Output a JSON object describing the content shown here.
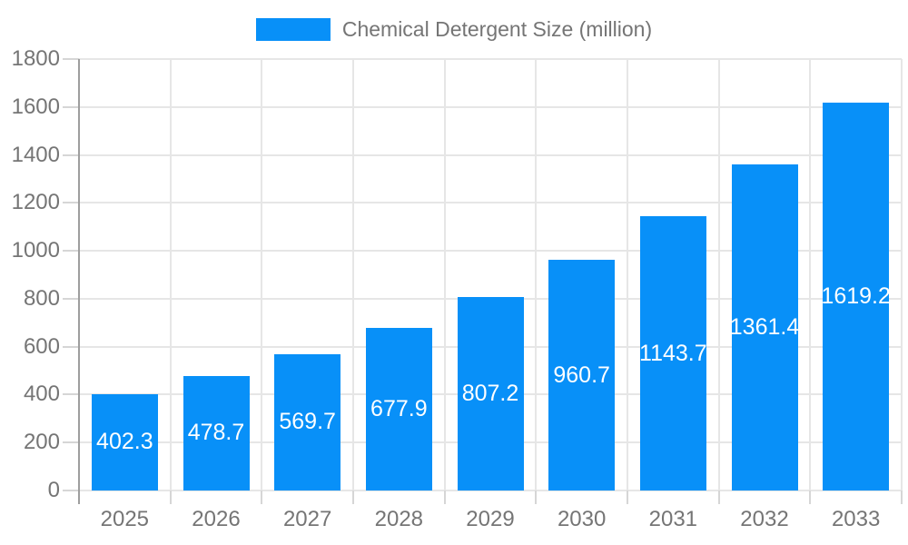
{
  "page": {
    "background": "#ffffff"
  },
  "legend": {
    "items": [
      {
        "label": "Chemical Detergent Size (million)",
        "swatch_color": "#0890f8"
      }
    ]
  },
  "chart_data": {
    "type": "bar",
    "title": "Chemical Detergent Size (million)",
    "categories": [
      "2025",
      "2026",
      "2027",
      "2028",
      "2029",
      "2030",
      "2031",
      "2032",
      "2033"
    ],
    "series": [
      {
        "name": "Chemical Detergent Size (million)",
        "values": [
          402.3,
          478.7,
          569.7,
          677.9,
          807.2,
          960.7,
          1143.7,
          1361.4,
          1619.2
        ]
      }
    ],
    "value_labels": [
      "402.3",
      "478.7",
      "569.7",
      "677.9",
      "807.2",
      "960.7",
      "1143.7",
      "1361.4",
      "1619.2"
    ],
    "xlabel": "",
    "ylabel": "",
    "ylim": [
      0,
      1800
    ],
    "ytick_interval": 200,
    "yticks": [
      0,
      200,
      400,
      600,
      800,
      1000,
      1200,
      1400,
      1600,
      1800
    ],
    "grid": true,
    "legend_position": "top",
    "colors": {
      "bar": "#0890f8",
      "grid": "#e6e6e6",
      "axis_line": "#9e9e9e",
      "tick": "#d6d6d6",
      "axis_text": "#757575",
      "value_text": "#ffffff"
    }
  }
}
